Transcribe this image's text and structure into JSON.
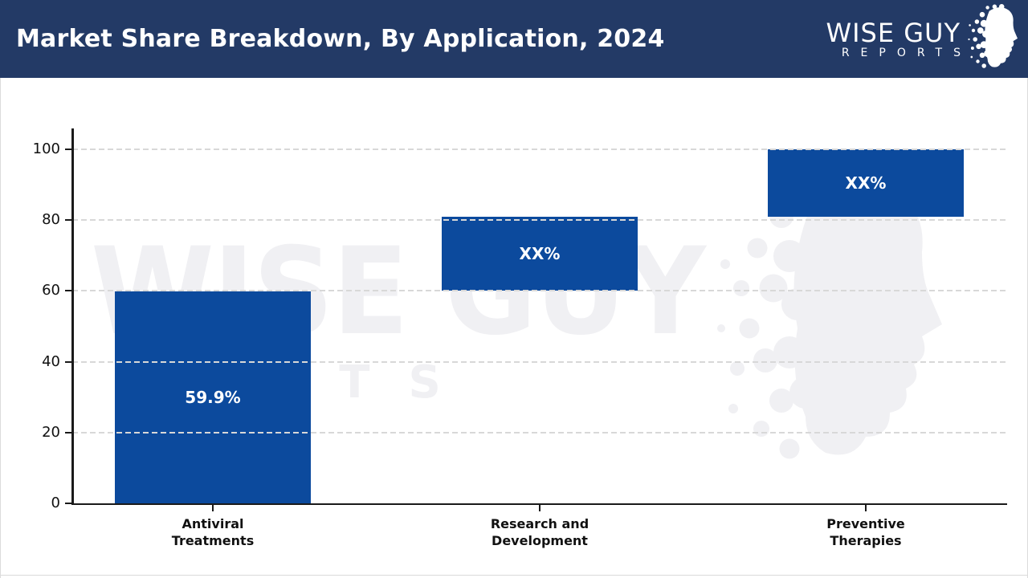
{
  "header": {
    "title": "Market Share Breakdown, By Application, 2024",
    "logo": {
      "name": "WISE GUY",
      "sub": "REPORTS"
    }
  },
  "watermark": {
    "name": "WISE GUY",
    "sub": "PORTS"
  },
  "chart_data": {
    "type": "bar",
    "subtype": "waterfall-breakdown",
    "title": "Market Share Breakdown, By Application, 2024",
    "categories": [
      [
        "Antiviral",
        "Treatments"
      ],
      [
        "Research and",
        "Development"
      ],
      [
        "Preventive",
        "Therapies"
      ]
    ],
    "segments": [
      {
        "category": "Antiviral Treatments",
        "start": 0,
        "end": 59.9,
        "label": "59.9%"
      },
      {
        "category": "Research and Development",
        "start": 60,
        "end": 81,
        "label": "XX%"
      },
      {
        "category": "Preventive Therapies",
        "start": 81,
        "end": 100,
        "label": "XX%"
      }
    ],
    "yticks": [
      0,
      20,
      40,
      60,
      80,
      100
    ],
    "ylim": [
      0,
      106
    ],
    "grid": "dashed-horizontal",
    "legend": null,
    "bar_color": "#0c4a9d",
    "bar_label_color": "#ffffff",
    "axis_color": "#1a1a1a",
    "grid_color": "#d8d8d8",
    "header_bg": "#233a66",
    "watermark_color": "#f0f0f3"
  }
}
